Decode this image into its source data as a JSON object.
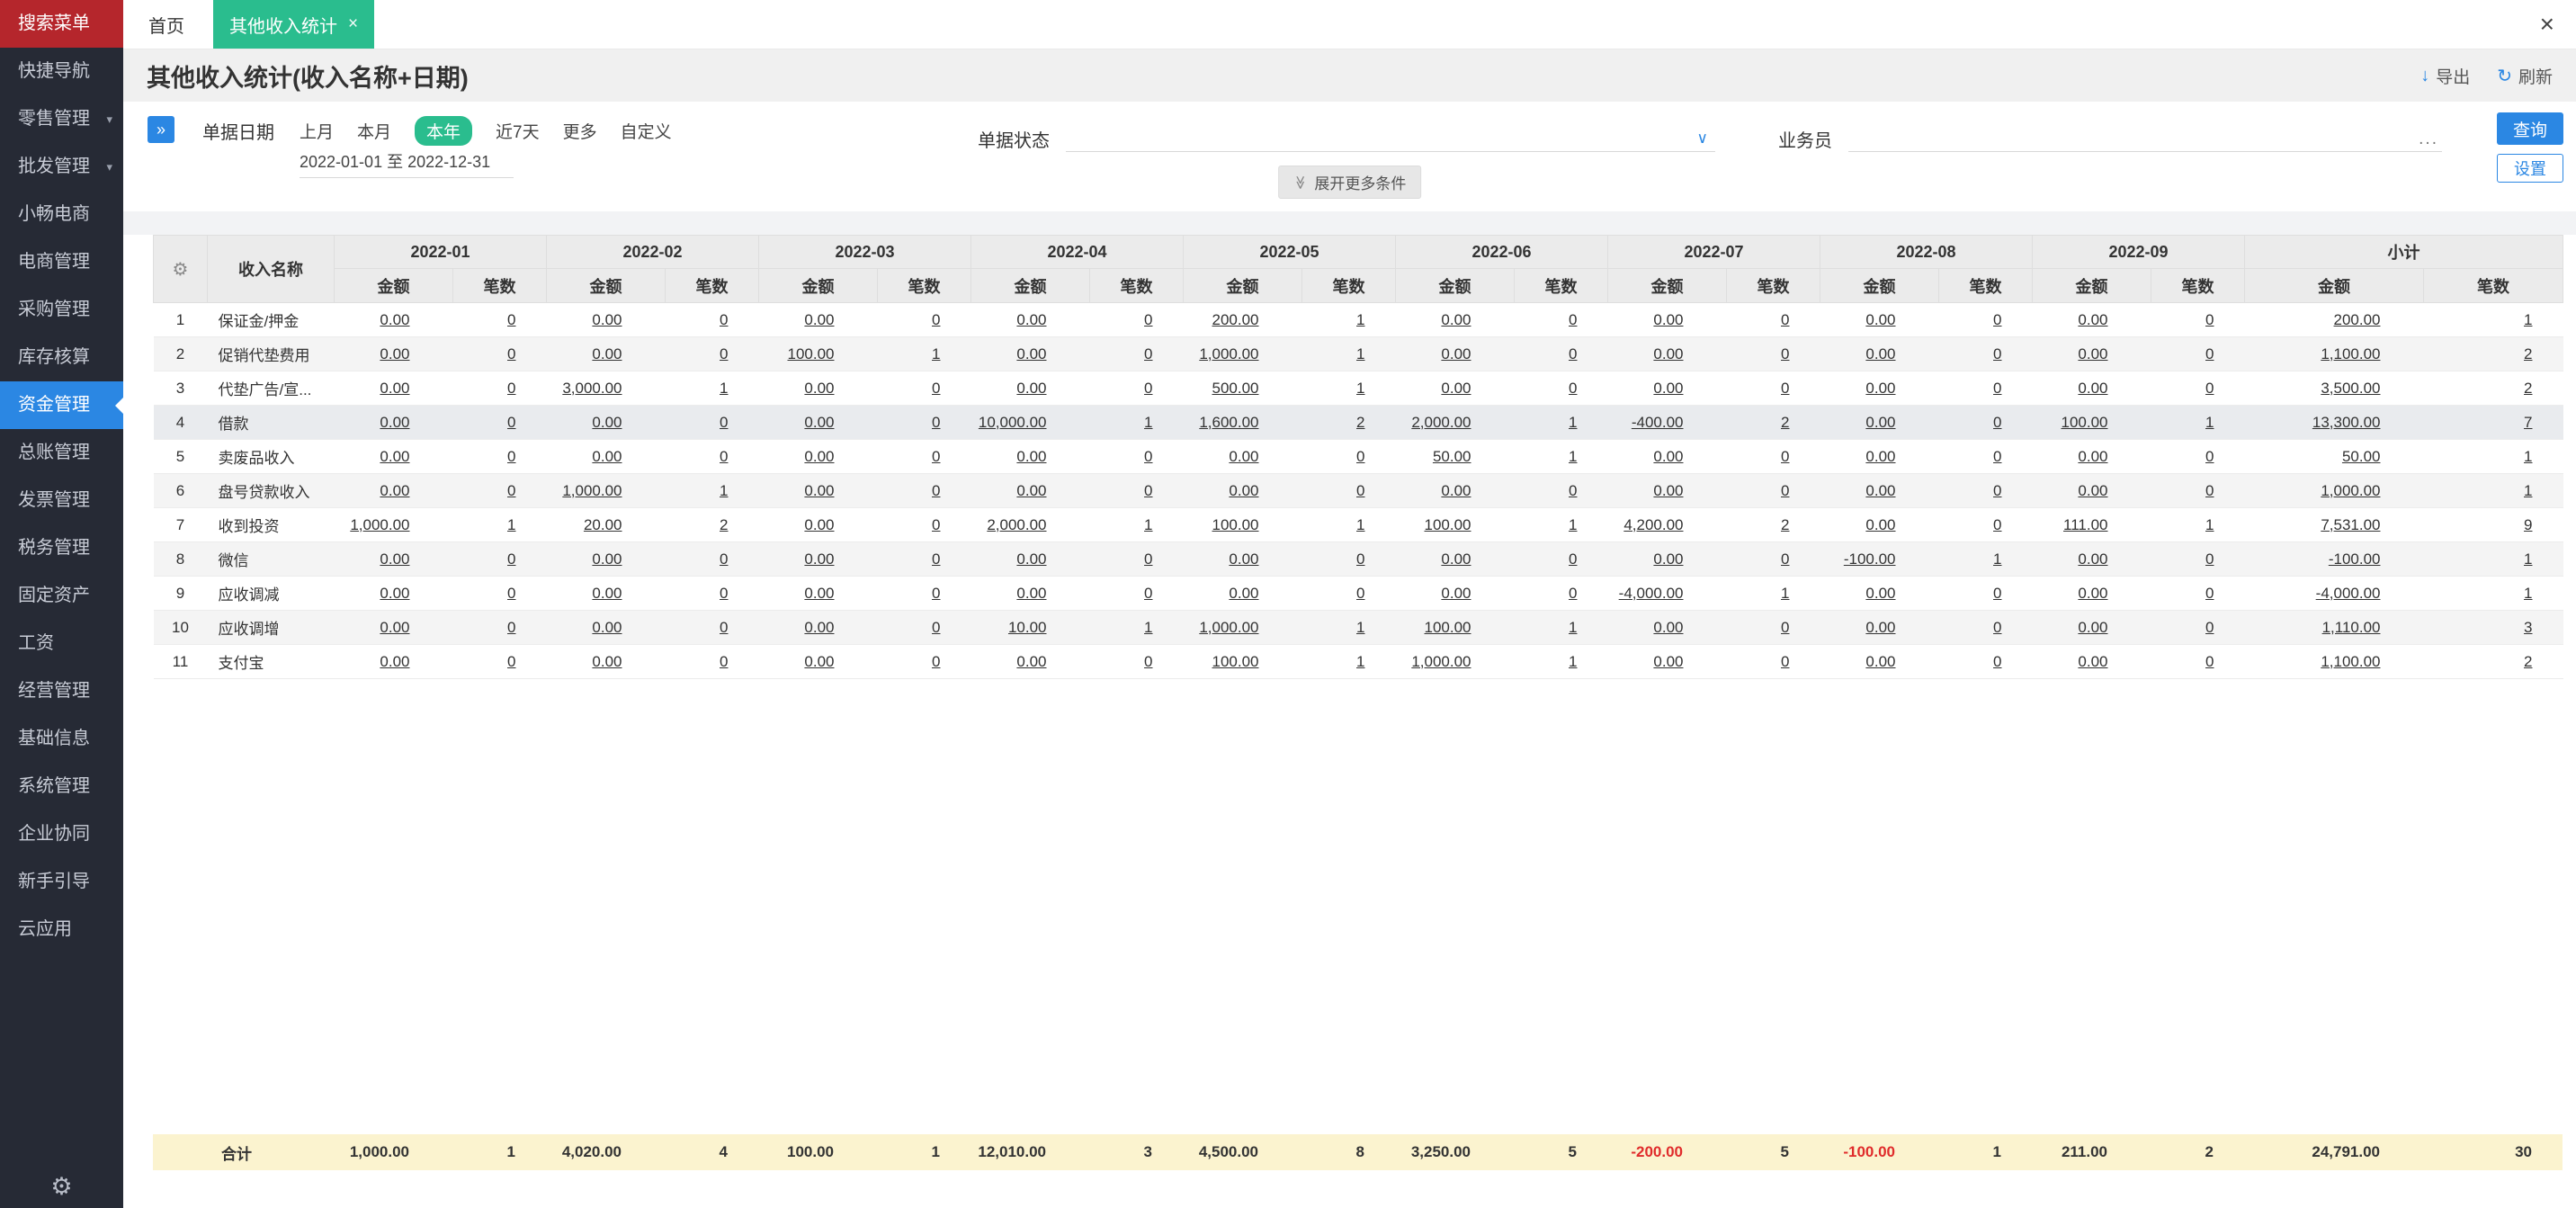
{
  "sidebar": {
    "search_label": "搜索菜单",
    "items": [
      {
        "label": "快捷导航"
      },
      {
        "label": "零售管理",
        "caret": true
      },
      {
        "label": "批发管理",
        "caret": true
      },
      {
        "label": "小畅电商"
      },
      {
        "label": "电商管理"
      },
      {
        "label": "采购管理"
      },
      {
        "label": "库存核算"
      },
      {
        "label": "资金管理",
        "active": true
      },
      {
        "label": "总账管理"
      },
      {
        "label": "发票管理"
      },
      {
        "label": "税务管理"
      },
      {
        "label": "固定资产"
      },
      {
        "label": "工资"
      },
      {
        "label": "经营管理"
      },
      {
        "label": "基础信息"
      },
      {
        "label": "系统管理"
      },
      {
        "label": "企业协同"
      },
      {
        "label": "新手引导"
      },
      {
        "label": "云应用"
      }
    ]
  },
  "tabs": {
    "home_label": "首页",
    "active_label": "其他收入统计",
    "close_glyph": "×",
    "window_close_glyph": "×"
  },
  "page": {
    "title": "其他收入统计(收入名称+日期)",
    "export_label": "导出",
    "refresh_label": "刷新"
  },
  "icons": {
    "export": "↓",
    "refresh": "↻",
    "collapse": "»",
    "select_chevron": "∨",
    "more_chevron": "≫",
    "gear": "⚙",
    "picker_ellipsis": "..."
  },
  "filters": {
    "date_label": "单据日期",
    "date_options": [
      "上月",
      "本月",
      "本年",
      "近7天",
      "更多",
      "自定义"
    ],
    "date_selected": "本年",
    "date_range": "2022-01-01 至 2022-12-31",
    "status_label": "单据状态",
    "salesman_label": "业务员",
    "query_label": "查询",
    "settings_label": "设置",
    "more_label": "展开更多条件"
  },
  "table": {
    "name_header": "收入名称",
    "amount_header": "金额",
    "count_header": "笔数",
    "subtotal_header": "小计",
    "total_label": "合计",
    "months": [
      "2022-01",
      "2022-02",
      "2022-03",
      "2022-04",
      "2022-05",
      "2022-06",
      "2022-07",
      "2022-08",
      "2022-09"
    ],
    "rows": [
      {
        "index": 1,
        "name": "保证金/押金",
        "cells": [
          [
            "0.00",
            "0"
          ],
          [
            "0.00",
            "0"
          ],
          [
            "0.00",
            "0"
          ],
          [
            "0.00",
            "0"
          ],
          [
            "200.00",
            "1"
          ],
          [
            "0.00",
            "0"
          ],
          [
            "0.00",
            "0"
          ],
          [
            "0.00",
            "0"
          ],
          [
            "0.00",
            "0"
          ]
        ],
        "subtotal": [
          "200.00",
          "1"
        ]
      },
      {
        "index": 2,
        "name": "促销代垫费用",
        "cells": [
          [
            "0.00",
            "0"
          ],
          [
            "0.00",
            "0"
          ],
          [
            "100.00",
            "1"
          ],
          [
            "0.00",
            "0"
          ],
          [
            "1,000.00",
            "1"
          ],
          [
            "0.00",
            "0"
          ],
          [
            "0.00",
            "0"
          ],
          [
            "0.00",
            "0"
          ],
          [
            "0.00",
            "0"
          ]
        ],
        "subtotal": [
          "1,100.00",
          "2"
        ]
      },
      {
        "index": 3,
        "name": "代垫广告/宣...",
        "cells": [
          [
            "0.00",
            "0"
          ],
          [
            "3,000.00",
            "1"
          ],
          [
            "0.00",
            "0"
          ],
          [
            "0.00",
            "0"
          ],
          [
            "500.00",
            "1"
          ],
          [
            "0.00",
            "0"
          ],
          [
            "0.00",
            "0"
          ],
          [
            "0.00",
            "0"
          ],
          [
            "0.00",
            "0"
          ]
        ],
        "subtotal": [
          "3,500.00",
          "2"
        ]
      },
      {
        "index": 4,
        "name": "借款",
        "highlighted": true,
        "cells": [
          [
            "0.00",
            "0"
          ],
          [
            "0.00",
            "0"
          ],
          [
            "0.00",
            "0"
          ],
          [
            "10,000.00",
            "1"
          ],
          [
            "1,600.00",
            "2"
          ],
          [
            "2,000.00",
            "1"
          ],
          [
            "-400.00",
            "2"
          ],
          [
            "0.00",
            "0"
          ],
          [
            "100.00",
            "1"
          ]
        ],
        "subtotal": [
          "13,300.00",
          "7"
        ]
      },
      {
        "index": 5,
        "name": "卖废品收入",
        "cells": [
          [
            "0.00",
            "0"
          ],
          [
            "0.00",
            "0"
          ],
          [
            "0.00",
            "0"
          ],
          [
            "0.00",
            "0"
          ],
          [
            "0.00",
            "0"
          ],
          [
            "50.00",
            "1"
          ],
          [
            "0.00",
            "0"
          ],
          [
            "0.00",
            "0"
          ],
          [
            "0.00",
            "0"
          ]
        ],
        "subtotal": [
          "50.00",
          "1"
        ]
      },
      {
        "index": 6,
        "name": "盘号贷款收入",
        "cells": [
          [
            "0.00",
            "0"
          ],
          [
            "1,000.00",
            "1"
          ],
          [
            "0.00",
            "0"
          ],
          [
            "0.00",
            "0"
          ],
          [
            "0.00",
            "0"
          ],
          [
            "0.00",
            "0"
          ],
          [
            "0.00",
            "0"
          ],
          [
            "0.00",
            "0"
          ],
          [
            "0.00",
            "0"
          ]
        ],
        "subtotal": [
          "1,000.00",
          "1"
        ]
      },
      {
        "index": 7,
        "name": "收到投资",
        "cells": [
          [
            "1,000.00",
            "1"
          ],
          [
            "20.00",
            "2"
          ],
          [
            "0.00",
            "0"
          ],
          [
            "2,000.00",
            "1"
          ],
          [
            "100.00",
            "1"
          ],
          [
            "100.00",
            "1"
          ],
          [
            "4,200.00",
            "2"
          ],
          [
            "0.00",
            "0"
          ],
          [
            "111.00",
            "1"
          ]
        ],
        "subtotal": [
          "7,531.00",
          "9"
        ]
      },
      {
        "index": 8,
        "name": "微信",
        "cells": [
          [
            "0.00",
            "0"
          ],
          [
            "0.00",
            "0"
          ],
          [
            "0.00",
            "0"
          ],
          [
            "0.00",
            "0"
          ],
          [
            "0.00",
            "0"
          ],
          [
            "0.00",
            "0"
          ],
          [
            "0.00",
            "0"
          ],
          [
            "-100.00",
            "1"
          ],
          [
            "0.00",
            "0"
          ]
        ],
        "subtotal": [
          "-100.00",
          "1"
        ]
      },
      {
        "index": 9,
        "name": "应收调减",
        "cells": [
          [
            "0.00",
            "0"
          ],
          [
            "0.00",
            "0"
          ],
          [
            "0.00",
            "0"
          ],
          [
            "0.00",
            "0"
          ],
          [
            "0.00",
            "0"
          ],
          [
            "0.00",
            "0"
          ],
          [
            "-4,000.00",
            "1"
          ],
          [
            "0.00",
            "0"
          ],
          [
            "0.00",
            "0"
          ]
        ],
        "subtotal": [
          "-4,000.00",
          "1"
        ]
      },
      {
        "index": 10,
        "name": "应收调增",
        "cells": [
          [
            "0.00",
            "0"
          ],
          [
            "0.00",
            "0"
          ],
          [
            "0.00",
            "0"
          ],
          [
            "10.00",
            "1"
          ],
          [
            "1,000.00",
            "1"
          ],
          [
            "100.00",
            "1"
          ],
          [
            "0.00",
            "0"
          ],
          [
            "0.00",
            "0"
          ],
          [
            "0.00",
            "0"
          ]
        ],
        "subtotal": [
          "1,110.00",
          "3"
        ]
      },
      {
        "index": 11,
        "name": "支付宝",
        "cells": [
          [
            "0.00",
            "0"
          ],
          [
            "0.00",
            "0"
          ],
          [
            "0.00",
            "0"
          ],
          [
            "0.00",
            "0"
          ],
          [
            "100.00",
            "1"
          ],
          [
            "1,000.00",
            "1"
          ],
          [
            "0.00",
            "0"
          ],
          [
            "0.00",
            "0"
          ],
          [
            "0.00",
            "0"
          ]
        ],
        "subtotal": [
          "1,100.00",
          "2"
        ]
      }
    ],
    "totals": [
      "1,000.00",
      "1",
      "4,020.00",
      "4",
      "100.00",
      "1",
      "12,010.00",
      "3",
      "4,500.00",
      "8",
      "3,250.00",
      "5",
      "-200.00",
      "5",
      "-100.00",
      "1",
      "211.00",
      "2",
      "24,791.00",
      "30"
    ]
  }
}
